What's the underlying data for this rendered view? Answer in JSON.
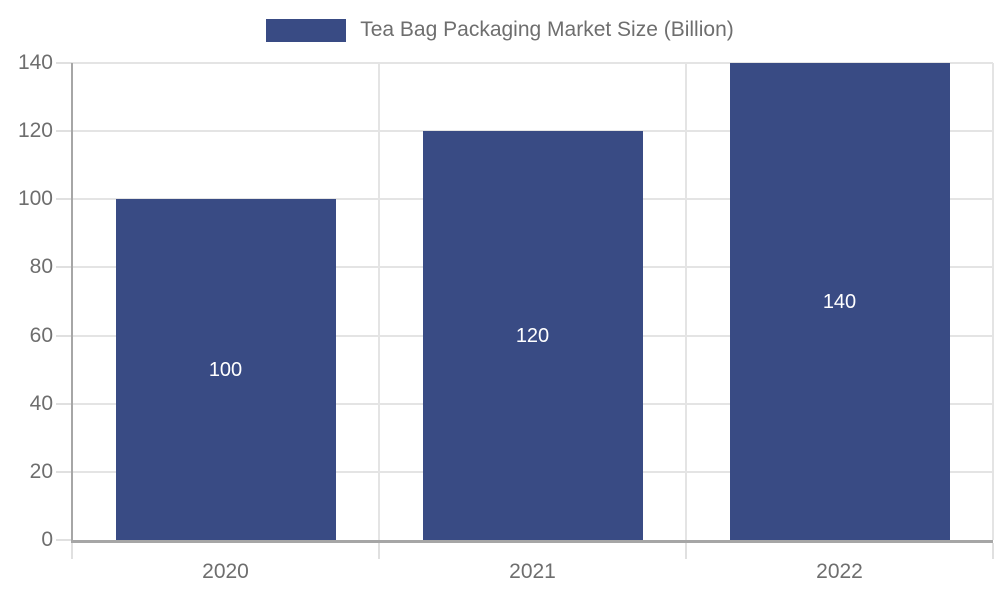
{
  "chart_data": {
    "type": "bar",
    "title": "Tea Bag Packaging Market Size (Billion)",
    "categories": [
      "2020",
      "2021",
      "2022"
    ],
    "series": [
      {
        "name": "Tea Bag Packaging Market Size (Billion)",
        "values": [
          100,
          120,
          140
        ]
      }
    ],
    "bar_value_labels": [
      "100",
      "120",
      "140"
    ],
    "xlabel": "",
    "ylabel": "",
    "ylim": [
      0,
      140
    ],
    "yticks": [
      0,
      20,
      40,
      60,
      80,
      100,
      120,
      140
    ],
    "grid": true,
    "legend_position": "top-center",
    "colors": {
      "bar": "#394B84",
      "grid": "#e4e4e4",
      "axis": "#a6a6a6",
      "tick": "#e0e0e0",
      "text": "#6e6e6e",
      "bar_label": "#ffffff",
      "background": "#ffffff"
    }
  }
}
